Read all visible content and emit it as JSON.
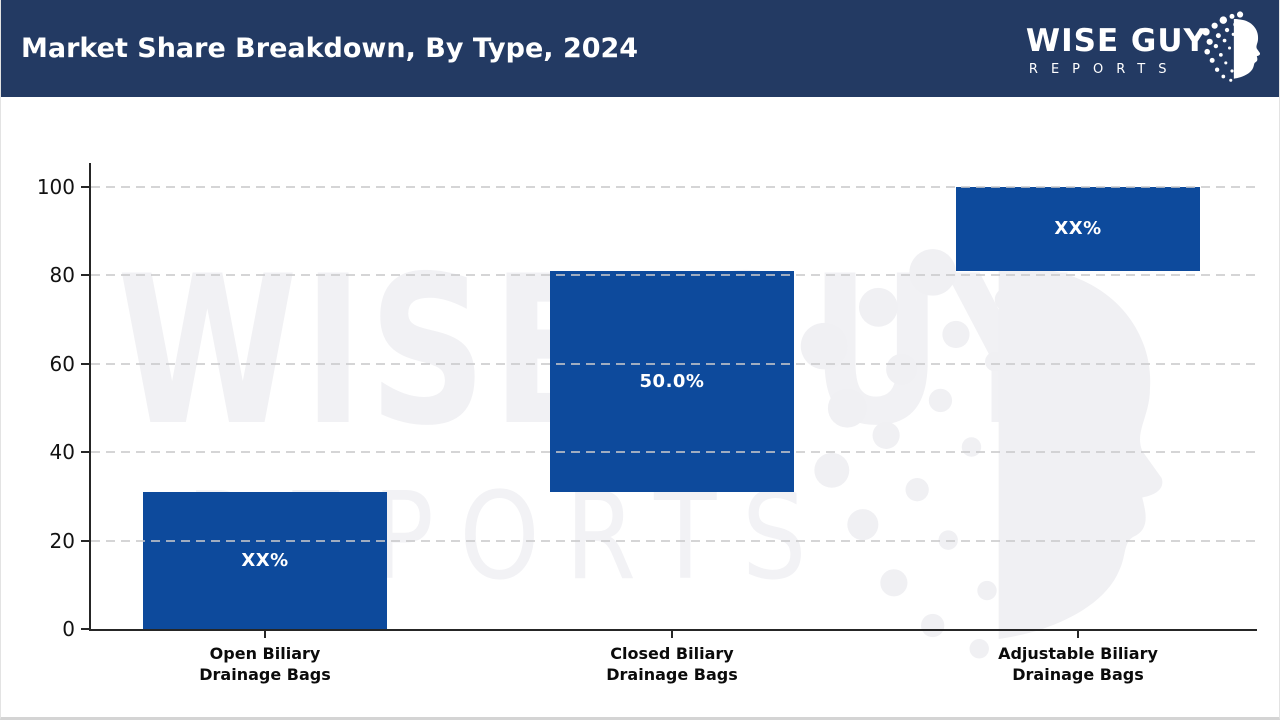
{
  "header": {
    "title": "Market Share Breakdown, By Type, 2024",
    "logo": {
      "name": "WISE GUY",
      "tagline": "REPORTS"
    }
  },
  "watermark": {
    "brand": "WISE GUY",
    "tagline": "REPORTS"
  },
  "colors": {
    "header_bg": "#233a63",
    "bar": "#0d4a9c",
    "axis": "#262626",
    "grid": "#c9c9cb",
    "bar_label_text": "#ffffff",
    "title_text": "#ffffff",
    "watermark": "#f1f1f4"
  },
  "chart_data": {
    "type": "bar",
    "subtype": "waterfall",
    "title": "Market Share Breakdown, By Type, 2024",
    "categories": [
      "Open Biliary Drainage Bags",
      "Closed Biliary Drainage Bags",
      "Adjustable Biliary Drainage Bags"
    ],
    "category_lines": [
      [
        "Open Biliary",
        "Drainage Bags"
      ],
      [
        "Closed Biliary",
        "Drainage Bags"
      ],
      [
        "Adjustable Biliary",
        "Drainage Bags"
      ]
    ],
    "bars": [
      {
        "category": "Open Biliary Drainage Bags",
        "start": 0,
        "end": 31,
        "label": "XX%"
      },
      {
        "category": "Closed Biliary Drainage Bags",
        "start": 31,
        "end": 81,
        "label": "50.0%"
      },
      {
        "category": "Adjustable Biliary Drainage Bags",
        "start": 81,
        "end": 100,
        "label": "XX%"
      }
    ],
    "y_ticks": [
      0,
      20,
      40,
      60,
      80,
      100
    ],
    "ylim": [
      0,
      106
    ],
    "xlabel": "",
    "ylabel": "",
    "grid": "horizontal-dashed",
    "legend": "none"
  }
}
